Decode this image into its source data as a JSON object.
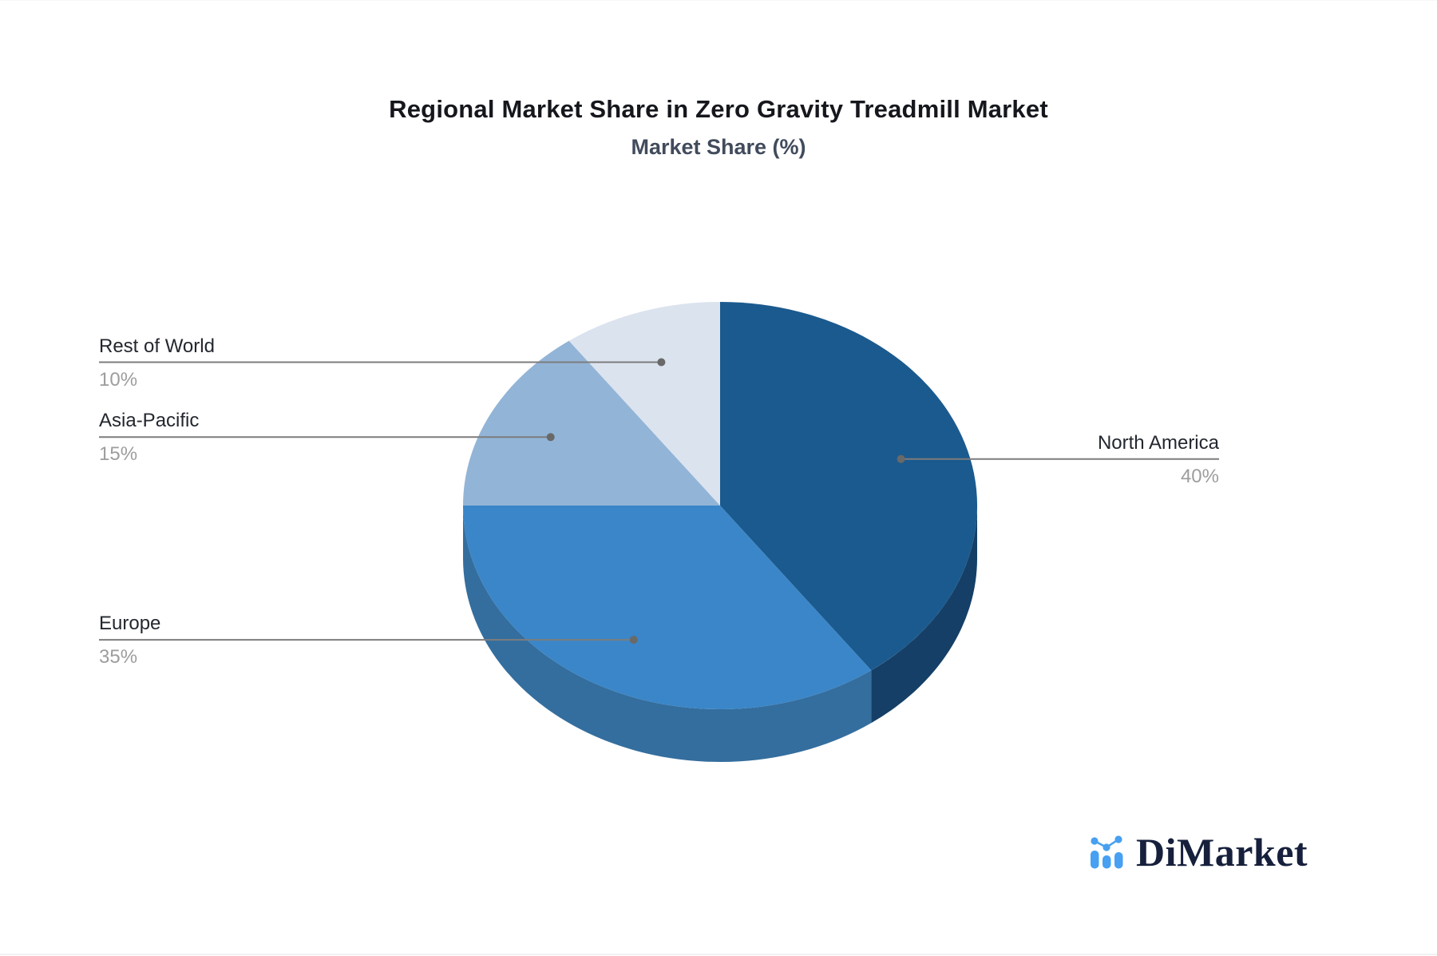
{
  "header": {
    "title": "Regional Market Share in Zero Gravity Treadmill Market",
    "subtitle": "Market Share (%)"
  },
  "chart_data": {
    "type": "pie",
    "style": "3d",
    "title": "Regional Market Share in Zero Gravity Treadmill Market",
    "subtitle": "Market Share (%)",
    "unit": "%",
    "start_angle_deg": 0,
    "direction": "clockwise",
    "labels_position": "callouts",
    "slices": [
      {
        "label": "North America",
        "value": 40,
        "value_text": "40%",
        "color": "#1B5A8E",
        "side_color": "#153F66"
      },
      {
        "label": "Europe",
        "value": 35,
        "value_text": "35%",
        "color": "#3A86C8",
        "side_color": "#346E9E"
      },
      {
        "label": "Asia-Pacific",
        "value": 15,
        "value_text": "15%",
        "color": "#92B4D7",
        "side_color": "#7FA3C9"
      },
      {
        "label": "Rest of World",
        "value": 10,
        "value_text": "10%",
        "color": "#DBE3EE",
        "side_color": "#C3CFDF"
      }
    ]
  },
  "callout_style": {
    "line_color": "#7D7D7D",
    "dot_color": "#696969",
    "label_color": "#23272E",
    "value_color": "#9D9D9D"
  },
  "brand": {
    "name": "DiMarket",
    "icon": "bar-line-chart-icon",
    "icon_color": "#47A0F1",
    "text_color": "#16203C"
  }
}
